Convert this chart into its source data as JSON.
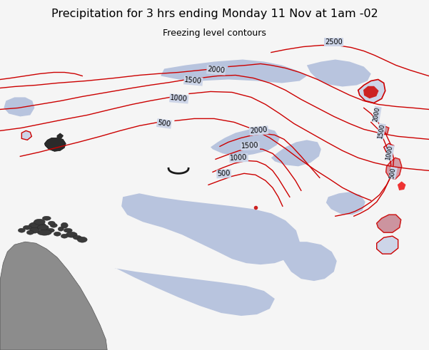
{
  "title": "Precipitation for 3 hrs ending Monday 11 Nov at 1am -02",
  "subtitle": "Freezing level contours",
  "ocean_color": "#cdd5e8",
  "precip_color": "#b8c4de",
  "land_color_main": "#8c8c8c",
  "land_color_dark": "#7a7a7a",
  "contour_color": "#cc0000",
  "header_bg": "#f5f5f5",
  "title_fontsize": 11.5,
  "subtitle_fontsize": 9
}
